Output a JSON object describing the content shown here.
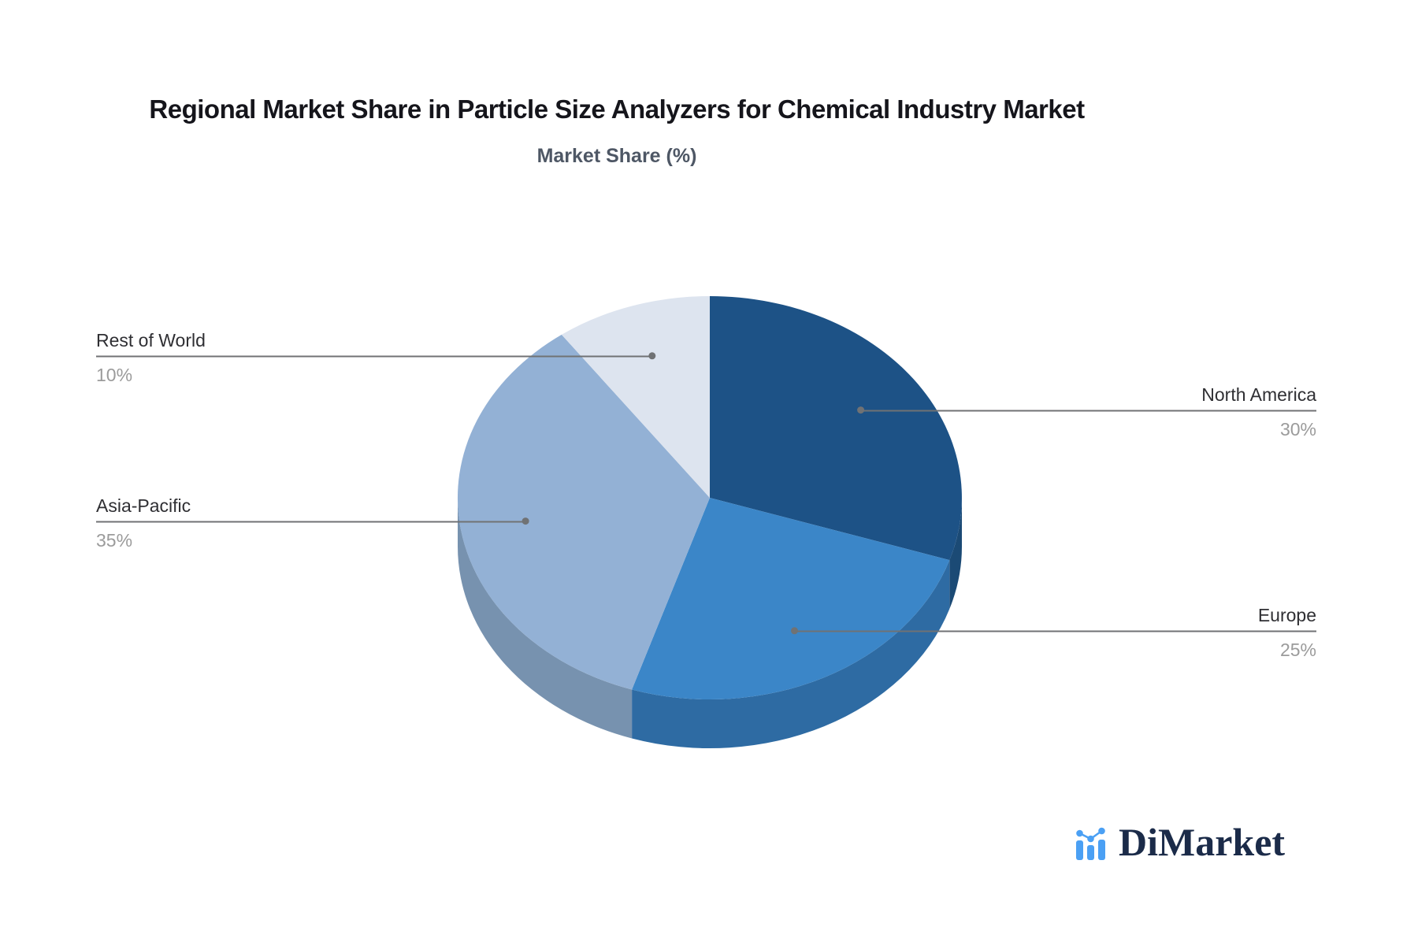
{
  "header": {
    "title": "Regional Market Share in Particle Size Analyzers for Chemical Industry Market",
    "subtitle": "Market Share (%)"
  },
  "chart_data": {
    "type": "pie",
    "title": "Regional Market Share in Particle Size Analyzers for Chemical Industry Market",
    "subtitle": "Market Share (%)",
    "unit": "%",
    "style": "pseudo-3d",
    "start_angle": "12-o-clock",
    "direction": "clockwise",
    "legend": "none",
    "slices": [
      {
        "label": "North America",
        "value": 30,
        "display": "30%",
        "color": "#1D5286",
        "side_color": "#1B4A75",
        "label_side": "right"
      },
      {
        "label": "Europe",
        "value": 25,
        "display": "25%",
        "color": "#3B86C8",
        "side_color": "#2E6BA3",
        "label_side": "right"
      },
      {
        "label": "Asia-Pacific",
        "value": 35,
        "display": "35%",
        "color": "#93B1D5",
        "side_color": "#7792AF",
        "label_side": "left"
      },
      {
        "label": "Rest of World",
        "value": 10,
        "display": "10%",
        "color": "#DDE4EF",
        "side_color": "#C2CBD9",
        "label_side": "left"
      }
    ],
    "leader_line_color": "#707274",
    "name_text_color": "#2f2f33",
    "pct_text_color": "#9b9b9b"
  },
  "logo": {
    "text": "DiMarket",
    "icon": "bar-chart-with-trend-dots",
    "icon_color": "#4BA0F4",
    "text_color": "#1B2B49"
  }
}
